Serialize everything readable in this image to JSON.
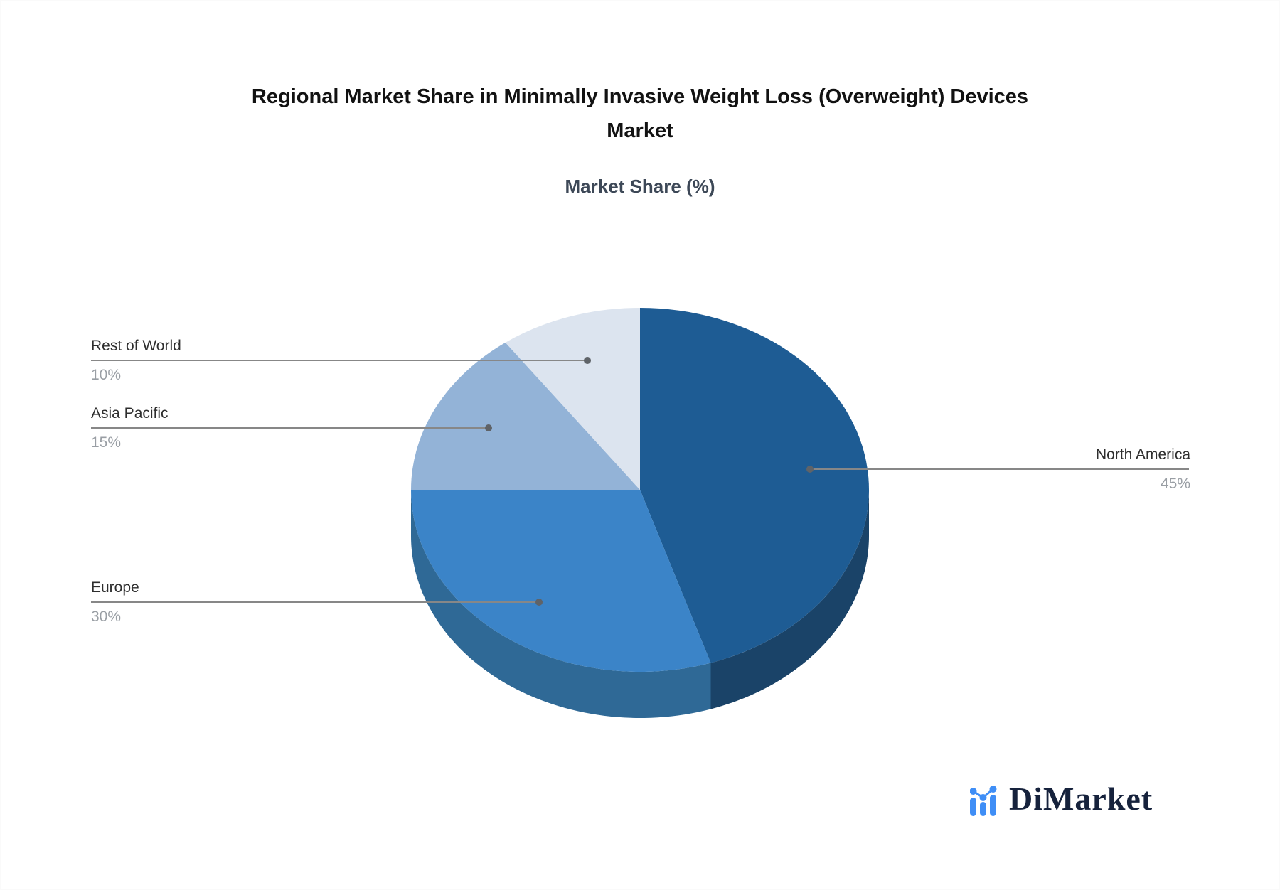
{
  "header": {
    "title_line1": "Regional Market Share in Minimally Invasive Weight Loss (Overweight) Devices",
    "title_line2": "Market",
    "subtitle": "Market Share (%)"
  },
  "chart_data": {
    "type": "pie",
    "style": "3d",
    "title": "Regional Market Share in Minimally Invasive Weight Loss (Overweight) Devices Market",
    "subtitle": "Market Share (%)",
    "unit": "%",
    "start_angle_deg": 0,
    "direction": "clockwise",
    "legend_position": "none",
    "label_style": "leader-lines",
    "slices": [
      {
        "label": "North America",
        "value": 45,
        "display": "45%",
        "color": "#1e5c94",
        "side_color": "#1a4368"
      },
      {
        "label": "Europe",
        "value": 30,
        "display": "30%",
        "color": "#3b84c8",
        "side_color": "#2f6996"
      },
      {
        "label": "Asia Pacific",
        "value": 15,
        "display": "15%",
        "color": "#93b3d7",
        "side_color": "#7d9fc6"
      },
      {
        "label": "Rest of World",
        "value": 10,
        "display": "10%",
        "color": "#dce4ef",
        "side_color": "#c3cfdf"
      }
    ],
    "leader_line_color": "#878787",
    "leader_dot_color": "#5f6368"
  },
  "branding": {
    "logo_text": "DiMarket"
  }
}
